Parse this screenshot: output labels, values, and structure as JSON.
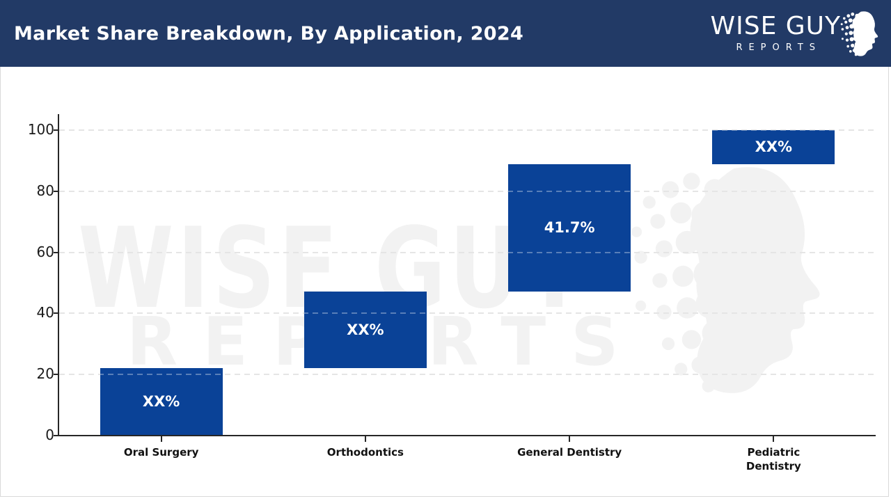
{
  "header": {
    "title": "Market Share Breakdown, By Application, 2024",
    "logo": {
      "line1": "WISE GUY",
      "line2": "REPORTS"
    }
  },
  "watermark": {
    "line1": "WISE GUY",
    "line2": "REPORTS"
  },
  "chart_data": {
    "type": "bar",
    "variant": "floating-waterfall",
    "title": "Market Share Breakdown, By Application, 2024",
    "categories": [
      "Oral Surgery",
      "Orthodontics",
      "General Dentistry",
      "Pediatric Dentistry"
    ],
    "segments": [
      {
        "category": "Oral Surgery",
        "start": 0,
        "end": 22.1,
        "value_label": "XX%",
        "wrap": false
      },
      {
        "category": "Orthodontics",
        "start": 22.1,
        "end": 47.2,
        "value_label": "XX%",
        "wrap": false
      },
      {
        "category": "General Dentistry",
        "start": 47.2,
        "end": 88.9,
        "value_label": "41.7%",
        "wrap": false
      },
      {
        "category": "Pediatric Dentistry",
        "start": 88.9,
        "end": 100,
        "value_label": "XX%",
        "wrap": true
      }
    ],
    "values": [
      22.1,
      25.1,
      41.7,
      11.1
    ],
    "y_ticks": [
      0,
      20,
      40,
      60,
      80,
      100
    ],
    "ylim": [
      0,
      100
    ],
    "xlabel": "",
    "ylabel": "",
    "grid": "dashed-horizontal",
    "legend": "none"
  },
  "colors": {
    "header_bg": "#223a66",
    "bar": "#0a4297",
    "bar_label": "#ffffff",
    "grid": "#d9d9d9",
    "axis": "#262626",
    "watermark": "#f2f2f2"
  }
}
